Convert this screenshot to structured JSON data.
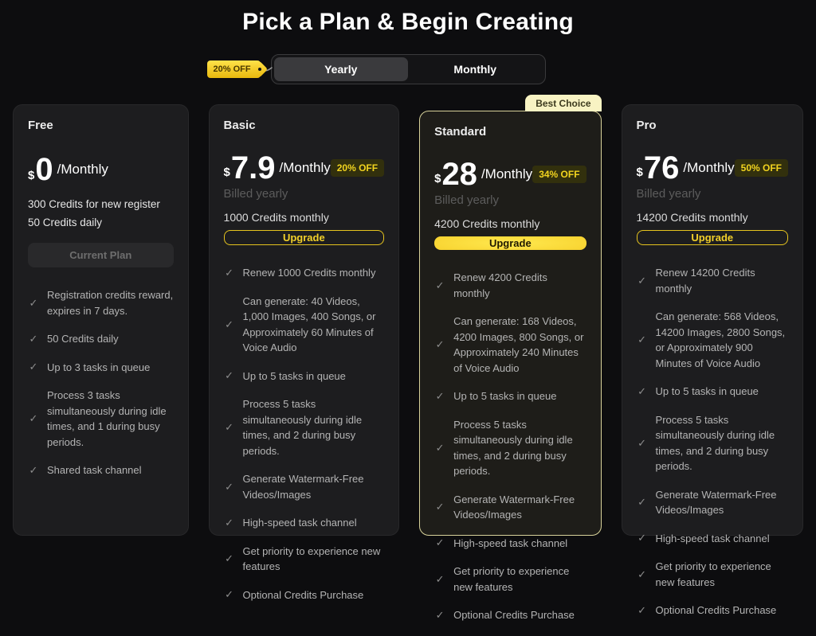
{
  "page_title": "Pick a Plan & Begin Creating",
  "billing": {
    "discount_tag": "20% OFF",
    "options": [
      {
        "label": "Yearly",
        "selected": true
      },
      {
        "label": "Monthly",
        "selected": false
      }
    ]
  },
  "icons": {
    "check": "✓"
  },
  "colors": {
    "page_bg": "#0d0d0f",
    "card_bg": "#1d1d1f",
    "accent_yellow": "#f2d02a",
    "standard_border": "#d8d29a",
    "best_badge_bg": "#f8f3c3"
  },
  "plans": [
    {
      "name": "Free",
      "currency": "$",
      "price": "0",
      "period": "/Monthly",
      "credits": [
        "300 Credits for new register",
        "50 Credits daily"
      ],
      "button_label": "Current Plan",
      "features": [
        "Registration credits reward, expires in 7 days.",
        "50 Credits daily",
        "Up to 3 tasks in queue",
        "Process 3 tasks simultaneously during idle times, and 1 during busy periods.",
        "Shared task channel"
      ]
    },
    {
      "name": "Basic",
      "currency": "$",
      "price": "7.9",
      "period": "/Monthly",
      "discount_badge": "20% OFF",
      "billed_note": "Billed yearly",
      "credits": [
        "1000 Credits monthly"
      ],
      "button_label": "Upgrade",
      "features": [
        "Renew 1000 Credits monthly",
        "Can generate: 40 Videos, 1,000 Images, 400 Songs, or Approximately 60 Minutes of Voice Audio",
        "Up to 5 tasks in queue",
        "Process 5 tasks simultaneously during idle times, and 2 during busy periods.",
        "Generate Watermark-Free Videos/Images",
        "High-speed task channel",
        "Get priority to experience new features",
        "Optional Credits Purchase"
      ]
    },
    {
      "name": "Standard",
      "highlight_badge": "Best Choice",
      "currency": "$",
      "price": "28",
      "period": "/Monthly",
      "discount_badge": "34% OFF",
      "billed_note": "Billed yearly",
      "credits": [
        "4200 Credits monthly"
      ],
      "button_label": "Upgrade",
      "features": [
        "Renew 4200 Credits monthly",
        "Can generate: 168 Videos, 4200 Images, 800 Songs, or Approximately 240 Minutes of Voice Audio",
        "Up to 5 tasks in queue",
        "Process 5 tasks simultaneously during idle times, and 2 during busy periods.",
        "Generate Watermark-Free Videos/Images",
        "High-speed task channel",
        "Get priority to experience new features",
        "Optional Credits Purchase"
      ]
    },
    {
      "name": "Pro",
      "currency": "$",
      "price": "76",
      "period": "/Monthly",
      "discount_badge": "50% OFF",
      "billed_note": "Billed yearly",
      "credits": [
        "14200 Credits monthly"
      ],
      "button_label": "Upgrade",
      "features": [
        "Renew 14200 Credits monthly",
        "Can generate: 568 Videos, 14200 Images, 2800 Songs, or Approximately 900 Minutes of Voice Audio",
        "Up to 5 tasks in queue",
        "Process 5 tasks simultaneously during idle times, and 2 during busy periods.",
        "Generate Watermark-Free Videos/Images",
        "High-speed task channel",
        "Get priority to experience new features",
        "Optional Credits Purchase"
      ]
    }
  ]
}
